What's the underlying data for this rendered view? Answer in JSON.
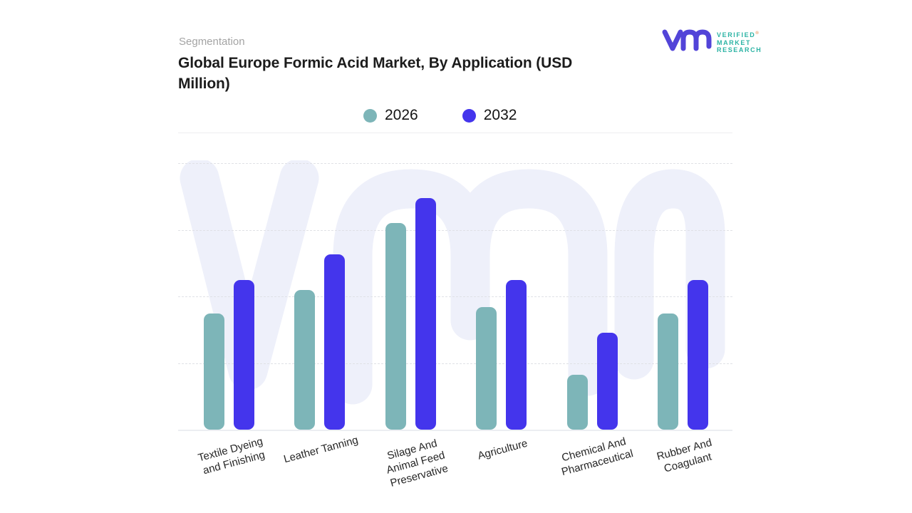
{
  "header": {
    "eyebrow": "Segmentation",
    "title": "Global Europe Formic Acid Market, By Application (USD Million)"
  },
  "logo": {
    "glyph": "vmr-monogram",
    "brand_lines": [
      "VERIFIED",
      "MARKET",
      "RESEARCH"
    ],
    "registered_mark": "®",
    "glyph_color": "#5244d8",
    "text_color": "#2bb3a4",
    "mark_color": "#e8935f"
  },
  "legend": [
    {
      "label": "2026",
      "color": "#7db5b8"
    },
    {
      "label": "2032",
      "color": "#4435ec"
    }
  ],
  "chart_data": {
    "type": "bar",
    "title": "Global Europe Formic Acid Market, By Application (USD Million)",
    "categories": [
      "Textile Dyeing\nand Finishing",
      "Leather Tanning",
      "Silage And\nAnimal Feed\nPreservative",
      "Agriculture",
      "Chemical And\nPharmaceutical",
      "Rubber And\nCoagulant"
    ],
    "series": [
      {
        "name": "2026",
        "color": "#7db5b8",
        "values": [
          174,
          210,
          310,
          184,
          82,
          174
        ]
      },
      {
        "name": "2032",
        "color": "#4435ec",
        "values": [
          225,
          263,
          348,
          225,
          145,
          225
        ]
      }
    ],
    "xlabel": "",
    "ylabel": "",
    "ylim": [
      0,
      420
    ],
    "gridline_values": [
      100,
      200,
      300,
      400
    ],
    "grid": "horizontal-dashed",
    "y_ticks_labeled": false,
    "legend_position": "top-center",
    "units_note": "USD Million; y-axis unlabeled, values estimated in gridline units (1 gridline = 100)"
  },
  "watermark": {
    "name": "vmr-watermark",
    "color": "#eef0fa"
  }
}
